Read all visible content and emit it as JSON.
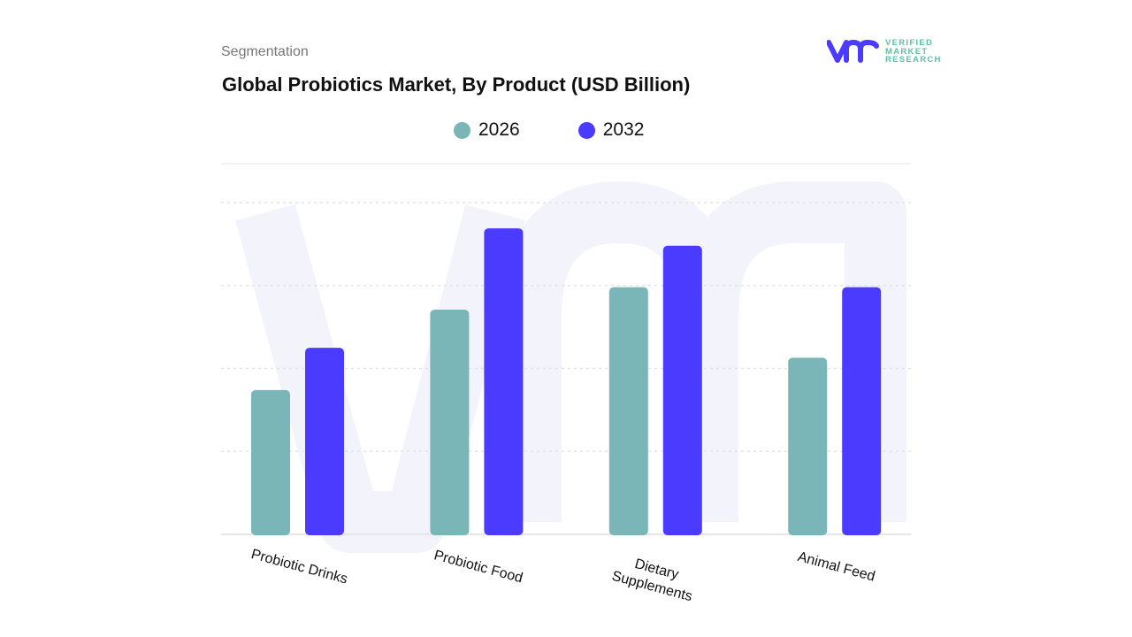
{
  "header": {
    "section": "Segmentation",
    "title": "Global Probiotics Market, By Product (USD Billion)"
  },
  "logo": {
    "text": "VERIFIED MARKET RESEARCH",
    "line1": "VERIFIED",
    "line2": "MARKET",
    "line3": "RESEARCH"
  },
  "colors": {
    "s2026": "#7ab5b8",
    "s2032": "#4b3bff",
    "grid": "#e6e6e6",
    "watermark": "#f3f4fb"
  },
  "chart_data": {
    "type": "bar",
    "title": "Global Probiotics Market, By Product (USD Billion)",
    "categories": [
      "Probiotic Drinks",
      "Probiotic Food",
      "Dietary Supplements",
      "Animal Feed"
    ],
    "category_lines": [
      [
        "Probiotic Drinks"
      ],
      [
        "Probiotic Food"
      ],
      [
        "Dietary",
        "Supplements"
      ],
      [
        "Animal Feed"
      ]
    ],
    "series": [
      {
        "name": "2026",
        "values": [
          1.74,
          2.71,
          2.98,
          2.13
        ]
      },
      {
        "name": "2032",
        "values": [
          2.25,
          3.69,
          3.48,
          2.98
        ]
      }
    ],
    "ylim": [
      0,
      4.5
    ],
    "y_axis_labels_shown": false,
    "grid": true,
    "legend": "top-center",
    "xlabel": "",
    "ylabel": ""
  }
}
